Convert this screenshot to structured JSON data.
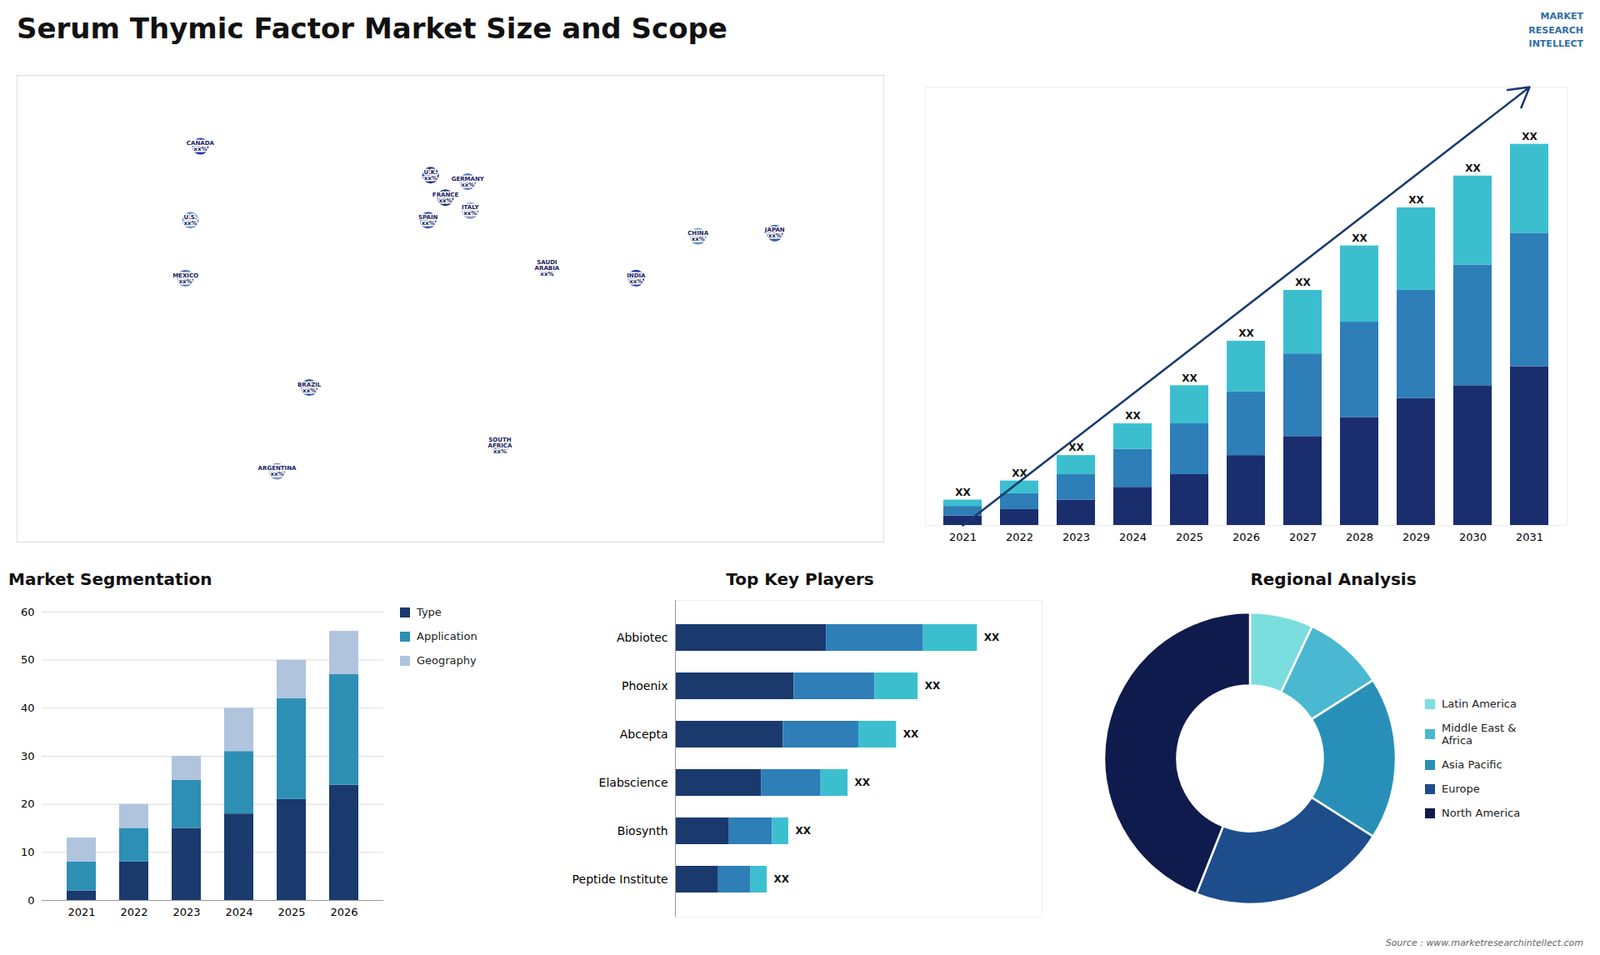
{
  "title": "Serum Thymic Factor Market Size and Scope",
  "annotations": [
    "MARKET\nRESEARCH\nINTELLECT",
    "Source : www.marketresearchintellect.com"
  ],
  "chart_data": [
    {
      "type": "map",
      "xlim": [
        -170,
        180
      ],
      "ylim": [
        -60,
        85
      ],
      "tick_labels": false,
      "regions": [
        {
          "label": "CANADA\nxx%",
          "lon": -96,
          "lat": 63,
          "color": "#2233aa"
        },
        {
          "label": "U.S.\nxx%",
          "lon": -100,
          "lat": 40,
          "color": "#6699cc"
        },
        {
          "label": "MEXICO\nxx%",
          "lon": -102,
          "lat": 22,
          "color": "#5577bb"
        },
        {
          "label": "BRAZIL\nxx%",
          "lon": -52,
          "lat": -12,
          "color": "#3355aa"
        },
        {
          "label": "ARGENTINA\nxx%",
          "lon": -65,
          "lat": -38,
          "color": "#8899cc"
        },
        {
          "label": "U.K.\nxx%",
          "lon": -3,
          "lat": 54,
          "color": "#1a2e6e"
        },
        {
          "label": "FRANCE\nxx%",
          "lon": 3,
          "lat": 47,
          "color": "#1a2e6e"
        },
        {
          "label": "SPAIN\nxx%",
          "lon": -4,
          "lat": 40,
          "color": "#3355aa"
        },
        {
          "label": "GERMANY\nxx%",
          "lon": 12,
          "lat": 52,
          "color": "#5577bb"
        },
        {
          "label": "ITALY\nxx%",
          "lon": 13,
          "lat": 43,
          "color": "#8899cc"
        },
        {
          "label": "SAUDI\nARABIA\nxx%",
          "lon": 44,
          "lat": 25,
          "color": "#8899cc"
        },
        {
          "label": "SOUTH\nAFRICA\nxx%",
          "lon": 25,
          "lat": -30,
          "color": "#3355aa"
        },
        {
          "label": "CHINA\nxx%",
          "lon": 105,
          "lat": 35,
          "color": "#6699cc"
        },
        {
          "label": "INDIA\nxx%",
          "lon": 80,
          "lat": 22,
          "color": "#2233aa"
        },
        {
          "label": "JAPAN\nxx%",
          "lon": 136,
          "lat": 36,
          "color": "#3355aa"
        }
      ]
    },
    {
      "type": "bar",
      "stacked": true,
      "categories": [
        2021,
        2022,
        2023,
        2024,
        2025,
        2026,
        2027,
        2028,
        2029,
        2030,
        2031
      ],
      "series": [
        {
          "color": "#1a2e6e",
          "values": [
            1.5,
            2.5,
            4,
            6,
            8,
            11,
            14,
            17,
            20,
            22,
            25
          ]
        },
        {
          "color": "#2e7eb8",
          "values": [
            1.5,
            2.5,
            4,
            6,
            8,
            10,
            13,
            15,
            17,
            19,
            21
          ]
        },
        {
          "color": "#3bbfcf",
          "values": [
            1,
            2,
            3,
            4,
            6,
            8,
            10,
            12,
            13,
            14,
            14
          ]
        }
      ],
      "value_labels": [
        "XX",
        "XX",
        "XX",
        "XX",
        "XX",
        "XX",
        "XX",
        "XX",
        "XX",
        "XX",
        "XX"
      ],
      "ylim": [
        0,
        69
      ],
      "tick_labels": "x",
      "arrow": {
        "color": "#1a3a6e"
      }
    },
    {
      "type": "bar",
      "title": "Market Segmentation",
      "stacked": true,
      "categories": [
        2021,
        2022,
        2023,
        2024,
        2025,
        2026
      ],
      "series": [
        {
          "name": "Type",
          "color": "#1a3a6e",
          "values": [
            2,
            8,
            15,
            18,
            21,
            24
          ]
        },
        {
          "name": "Application",
          "color": "#2e8fb5",
          "values": [
            6,
            7,
            10,
            13,
            21,
            23
          ]
        },
        {
          "name": "Geography",
          "color": "#b0c4de",
          "values": [
            5,
            5,
            5,
            9,
            8,
            9
          ]
        }
      ],
      "ylim": [
        0,
        60
      ],
      "yticks": [
        0,
        10,
        20,
        30,
        40,
        50,
        60
      ],
      "grid": true,
      "legend": "right"
    },
    {
      "type": "bar",
      "title": "Top Key Players",
      "orientation": "horizontal",
      "stacked": true,
      "categories": [
        "Abbiotec",
        "Phoenix",
        "Abcepta",
        "Elabscience",
        "Biosynth",
        "Peptide Institute"
      ],
      "series": [
        {
          "color": "#1a3a6e",
          "values": [
            28,
            22,
            20,
            16,
            10,
            8
          ]
        },
        {
          "color": "#2e7eb8",
          "values": [
            18,
            15,
            14,
            11,
            8,
            6
          ]
        },
        {
          "color": "#3bbfcf",
          "values": [
            10,
            8,
            7,
            5,
            3,
            3
          ]
        }
      ],
      "value_labels": [
        "XX",
        "XX",
        "XX",
        "XX",
        "XX",
        "XX"
      ],
      "xlim": [
        0,
        68
      ],
      "tick_labels": "y"
    },
    {
      "type": "donut",
      "title": "Regional Analysis",
      "categories": [
        "Latin America",
        "Middle East &\nAfrica",
        "Asia Pacific",
        "Europe",
        "North America"
      ],
      "values": [
        7,
        9,
        18,
        22,
        44
      ],
      "colors": [
        "#7adede",
        "#4ab8d0",
        "#2890b8",
        "#1e4d8c",
        "#0f1b4d"
      ],
      "legend": "right"
    }
  ]
}
